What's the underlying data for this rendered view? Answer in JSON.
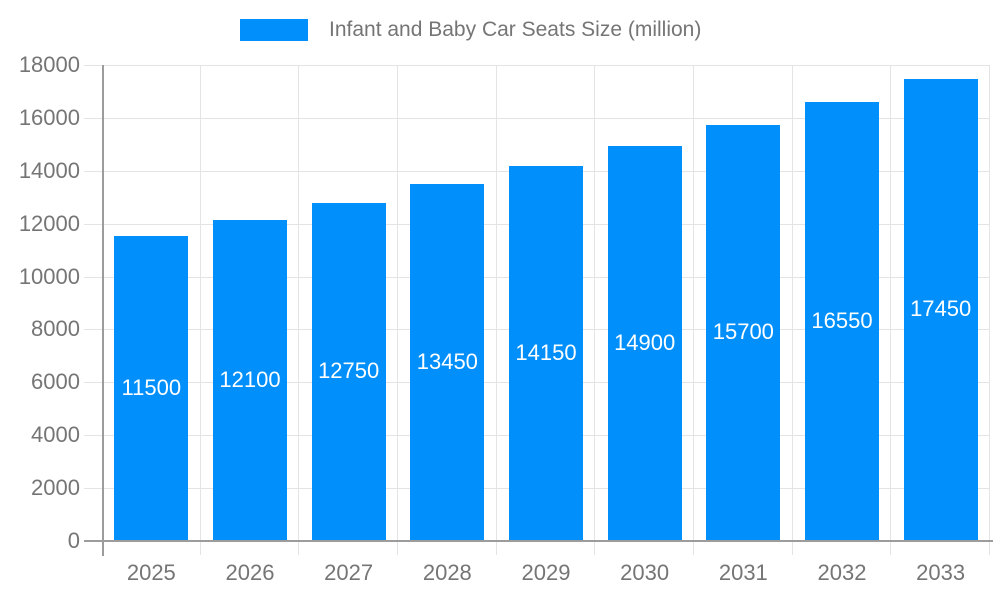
{
  "legend": {
    "label": "Infant and Baby Car Seats Size (million)",
    "swatch_color": "#008FFB",
    "text_color": "#757575",
    "position": "top"
  },
  "chart_data": {
    "type": "bar",
    "title": "Infant and Baby Car Seats Size (million)",
    "series_name": "Infant and Baby Car Seats Size (million)",
    "categories": [
      "2025",
      "2026",
      "2027",
      "2028",
      "2029",
      "2030",
      "2031",
      "2032",
      "2033"
    ],
    "values": [
      11500,
      12100,
      12750,
      13450,
      14150,
      14900,
      15700,
      16550,
      17450
    ],
    "xlabel": "",
    "ylabel": "",
    "ylim": [
      0,
      18000
    ],
    "ytick_step": 2000,
    "yticks": [
      0,
      2000,
      4000,
      6000,
      8000,
      10000,
      12000,
      14000,
      16000,
      18000
    ],
    "grid": true,
    "legend_position": "top",
    "bar_color": "#008FFB",
    "data_label_color": "#FFFFFF",
    "axis_label_color": "#757575",
    "gridline_color": "#e4e4e4",
    "axis_line_color": "#9c9c9c"
  }
}
